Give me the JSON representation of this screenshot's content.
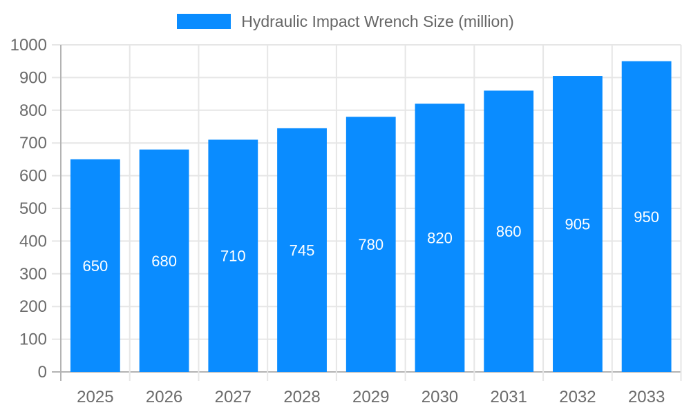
{
  "legend": {
    "label": "Hydraulic Impact Wrench Size (million)"
  },
  "chart_data": {
    "type": "bar",
    "title": "Hydraulic Impact Wrench Size (million)",
    "series_name": "Hydraulic Impact Wrench Size (million)",
    "categories": [
      "2025",
      "2026",
      "2027",
      "2028",
      "2029",
      "2030",
      "2031",
      "2032",
      "2033"
    ],
    "values": [
      650,
      680,
      710,
      745,
      780,
      820,
      860,
      905,
      950
    ],
    "xlabel": "",
    "ylabel": "",
    "ylim": [
      0,
      1000
    ],
    "ytick_step": 100,
    "grid": true,
    "legend_position": "top",
    "value_labels_position": "center-of-bar"
  },
  "colors": {
    "bar": "#0a8cff",
    "grid_line": "#e6e6e6",
    "axis_line": "#b3b3b3",
    "tick_text": "#6b6b6b",
    "legend_text": "#666666",
    "value_label_text": "#ffffff",
    "background": "#ffffff"
  }
}
